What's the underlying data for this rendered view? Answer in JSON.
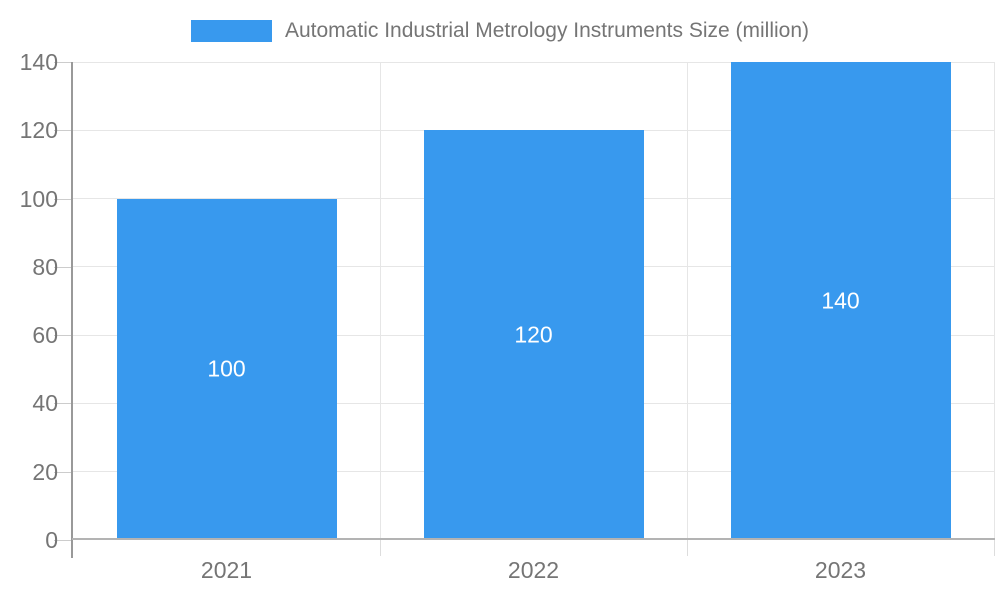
{
  "legend": {
    "label": "Automatic Industrial Metrology Instruments Size (million)",
    "swatch_color": "#3899ee"
  },
  "chart_data": {
    "type": "bar",
    "title": "",
    "categories": [
      "2021",
      "2022",
      "2023"
    ],
    "series": [
      {
        "name": "Automatic Industrial Metrology Instruments Size (million)",
        "values": [
          100,
          120,
          140
        ]
      }
    ],
    "data_labels": [
      "100",
      "120",
      "140"
    ],
    "xlabel": "",
    "ylabel": "",
    "ylim": [
      0,
      140
    ],
    "yticks": [
      0,
      20,
      40,
      60,
      80,
      100,
      120,
      140
    ],
    "grid": true,
    "legend_position": "top",
    "bar_color": "#3899ee",
    "data_label_color": "#ffffff"
  },
  "colors": {
    "background": "#ffffff",
    "grid_line": "#e6e6e6",
    "y_axis_line": "#999999",
    "x_axis_line": "#b3b3b3",
    "axis_text": "#757575",
    "bar": "#3899ee",
    "bar_label": "#ffffff"
  }
}
